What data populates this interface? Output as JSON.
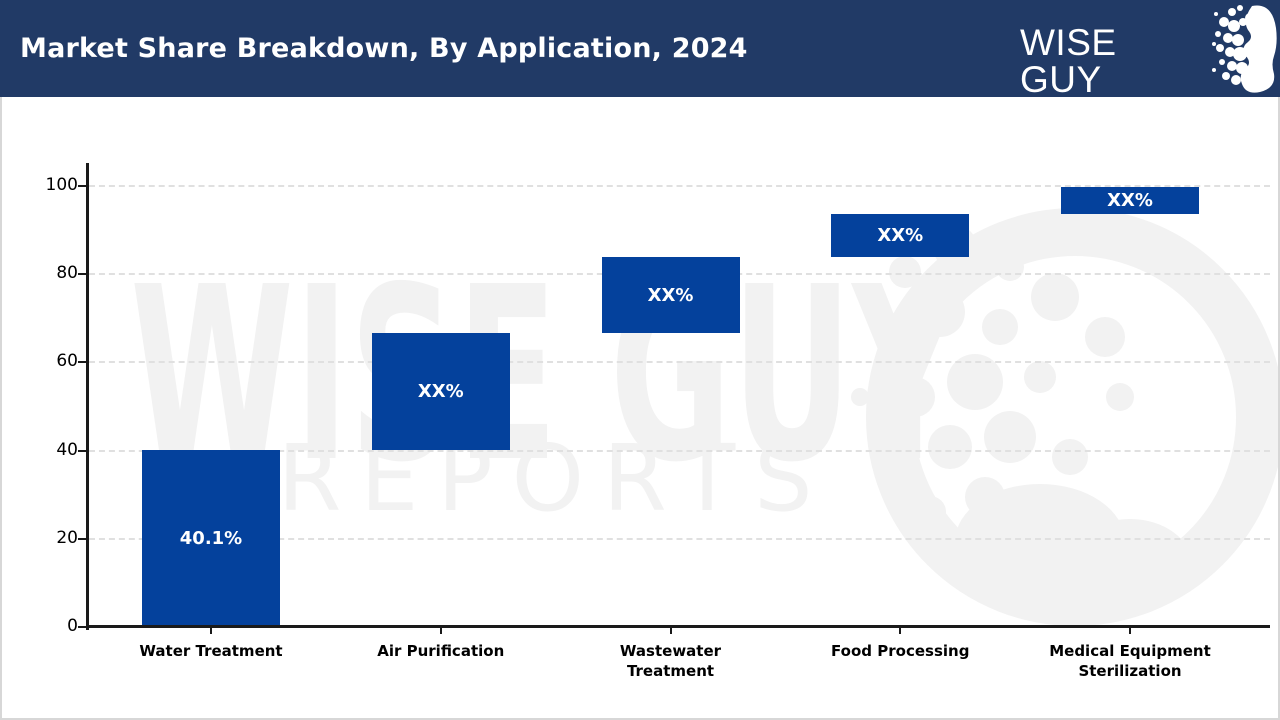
{
  "header": {
    "title": "Market Share Breakdown, By Application, 2024",
    "bg_color": "#213a66",
    "logo": {
      "wordmark": "WISE GUY",
      "subtext": "REPORTS"
    }
  },
  "watermark": {
    "line1": "WISE GUY",
    "line2": "REPORTS"
  },
  "chart_data": {
    "type": "bar",
    "subtype": "waterfall",
    "title": "Market Share Breakdown, By Application, 2024",
    "categories": [
      "Water Treatment",
      "Air Purification",
      "Wastewater Treatment",
      "Food Processing",
      "Medical Equipment Sterilization"
    ],
    "segments": [
      {
        "category": "Water Treatment",
        "start": 0,
        "end": 40.1,
        "label": "40.1%"
      },
      {
        "category": "Air Purification",
        "start": 40.1,
        "end": 66.6,
        "label": "XX%"
      },
      {
        "category": "Wastewater Treatment",
        "start": 66.6,
        "end": 83.9,
        "label": "XX%"
      },
      {
        "category": "Food Processing",
        "start": 83.9,
        "end": 93.7,
        "label": "XX%"
      },
      {
        "category": "Medical Equipment Sterilization",
        "start": 93.7,
        "end": 99.7,
        "label": "XX%"
      }
    ],
    "y_ticks": [
      0,
      20,
      40,
      60,
      80,
      100
    ],
    "ylim": [
      0,
      105
    ],
    "grid": "horizontal-dashed",
    "legend": "none",
    "bar_color": "#04419c",
    "bar_label_color": "#ffffff",
    "axis_color": "#1a1a1a",
    "grid_color": "#e0e0e0",
    "watermark_color": "#f2f2f2"
  }
}
